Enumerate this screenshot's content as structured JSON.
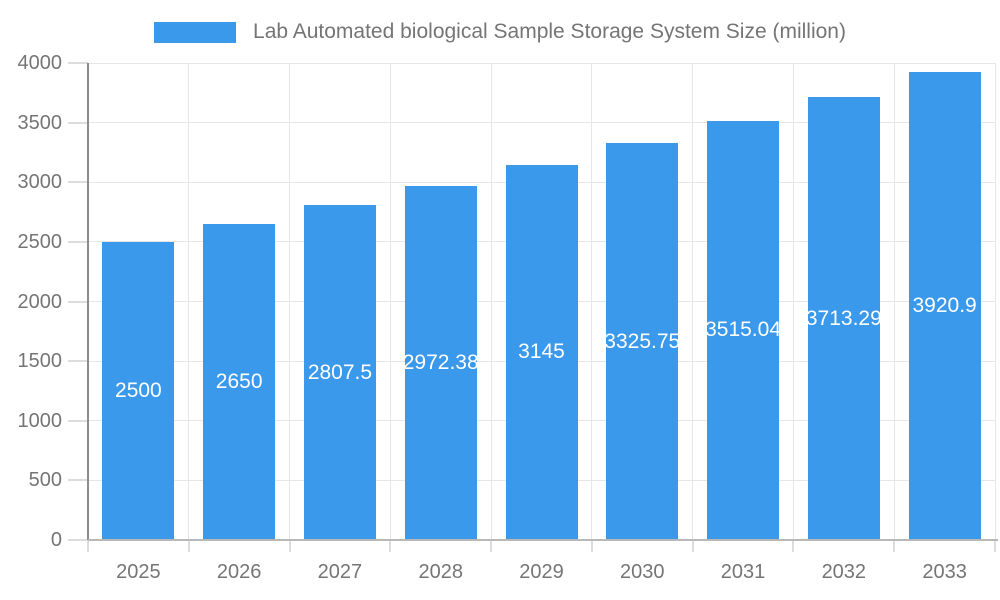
{
  "chart_data": {
    "type": "bar",
    "legend_label": "Lab Automated biological Sample Storage System Size (million)",
    "categories": [
      "2025",
      "2026",
      "2027",
      "2028",
      "2029",
      "2030",
      "2031",
      "2032",
      "2033"
    ],
    "series": [
      {
        "name": "Lab Automated biological Sample Storage System Size (million)",
        "values": [
          2500,
          2650,
          2807.5,
          2972.38,
          3145,
          3325.75,
          3515.04,
          3713.29,
          3920.9
        ]
      }
    ],
    "value_labels": [
      "2500",
      "2650",
      "2807.5",
      "2972.38",
      "3145",
      "3325.75",
      "3515.04",
      "3713.29",
      "3920.9"
    ],
    "xlabel": "",
    "ylabel": "",
    "ylim": [
      0,
      4000
    ],
    "ytick_step": 500,
    "ytick_labels": [
      "0",
      "500",
      "1000",
      "1500",
      "2000",
      "2500",
      "3000",
      "3500",
      "4000"
    ],
    "grid": true,
    "legend_position": "top-center",
    "colors": {
      "bar": "#3B99EC",
      "value_label": "#FFFFFF",
      "axis_text": "#757575",
      "grid_line": "#E6E6E6",
      "tick_line": "#DCDCDC",
      "x_axis_line": "#B8B8B8",
      "y_axis_line": "#8C8C8C",
      "background": "#FFFFFF"
    }
  }
}
